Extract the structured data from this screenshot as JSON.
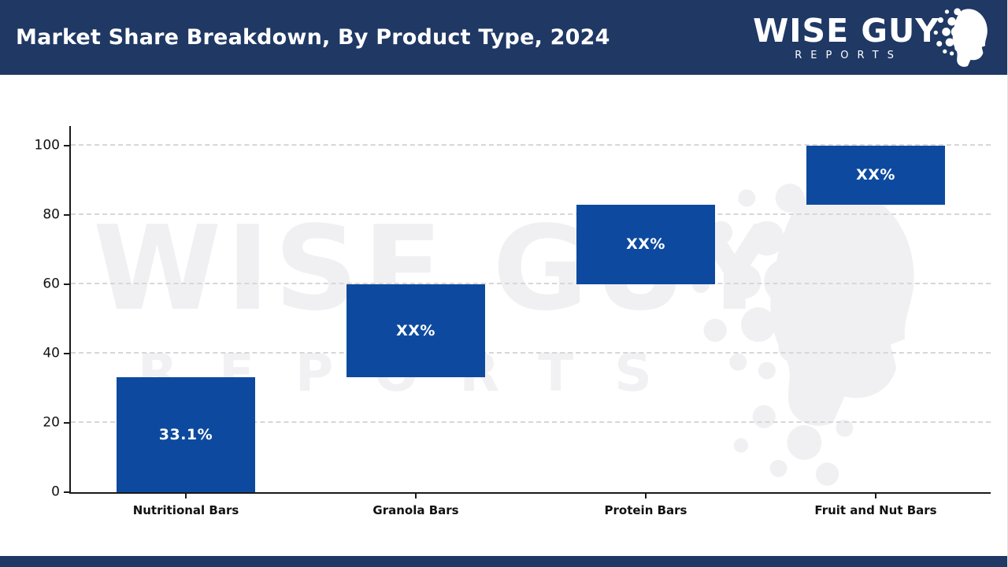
{
  "header": {
    "title": "Market Share Breakdown, By Product Type, 2024",
    "logo": {
      "line1": "WISE GUY",
      "line2": "REPORTS"
    },
    "bg_color": "#1f3864"
  },
  "watermark": {
    "line1": "WISE GUY",
    "line2": "REPORTS"
  },
  "chart_data": {
    "type": "bar",
    "subtype": "waterfall-market-share",
    "title": "Market Share Breakdown, By Product Type, 2024",
    "xlabel": "",
    "ylabel": "",
    "ylim": [
      0,
      100
    ],
    "yticks": [
      0,
      20,
      40,
      60,
      80,
      100
    ],
    "grid": "horizontal-dashed",
    "legend": "none",
    "bar_color": "#0d4a9f",
    "bar_label_color": "#ffffff",
    "categories": [
      "Nutritional Bars",
      "Granola Bars",
      "Protein Bars",
      "Fruit and Nut Bars"
    ],
    "segments": [
      {
        "category": "Nutritional Bars",
        "start": 0,
        "end": 33.1,
        "label": "33.1%"
      },
      {
        "category": "Granola Bars",
        "start": 33.1,
        "end": 60,
        "label": "XX%"
      },
      {
        "category": "Protein Bars",
        "start": 60,
        "end": 83,
        "label": "XX%"
      },
      {
        "category": "Fruit and Nut Bars",
        "start": 83,
        "end": 100,
        "label": "XX%"
      }
    ]
  }
}
